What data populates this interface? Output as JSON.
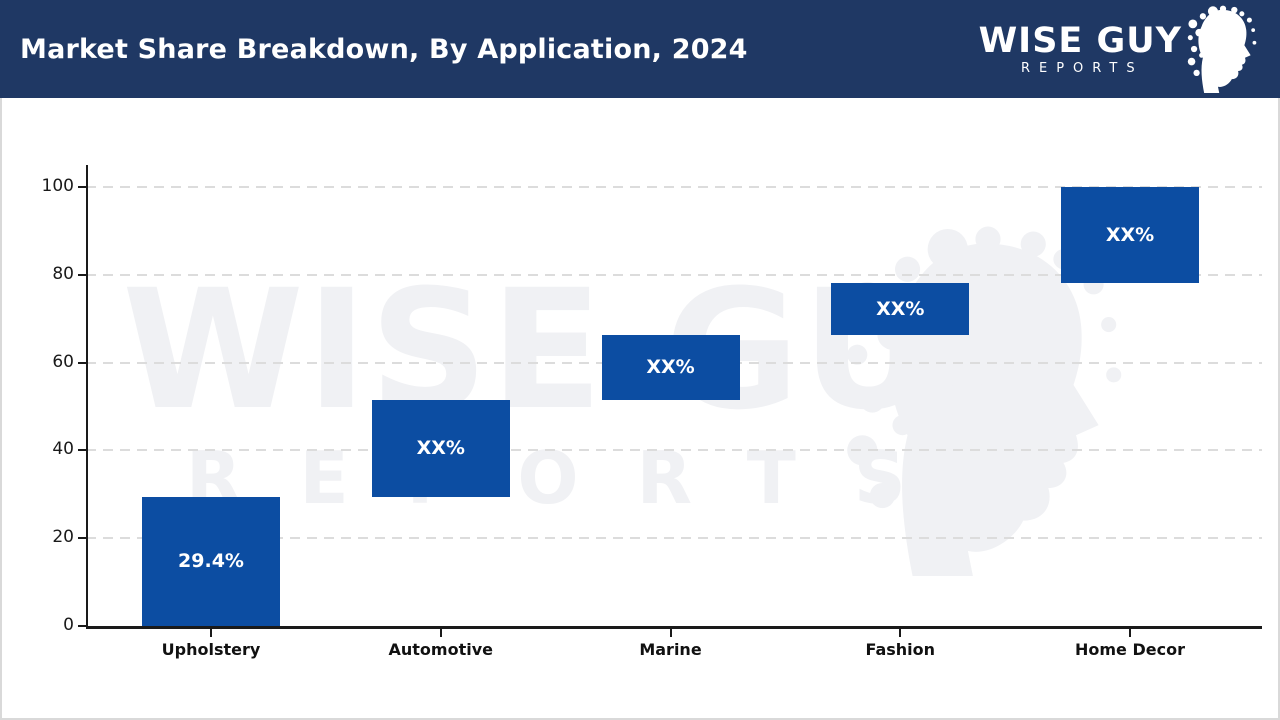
{
  "header": {
    "title": "Market Share Breakdown, By Application, 2024",
    "logo": {
      "line1": "WISE GUY",
      "line2": "REPORTS"
    }
  },
  "watermark": {
    "line1": "WISE GUY",
    "line2": "REPORTS"
  },
  "icons": {
    "logo_mark": "head-profile-dots-icon"
  },
  "colors": {
    "header_bg": "#1f3864",
    "title_text": "#ffffff",
    "bar": "#0c4da2",
    "bar_label": "#ffffff",
    "grid": "#dcdcdc",
    "axis": "#1a1a1a",
    "watermark": "#f0f1f4"
  },
  "chart_data": {
    "type": "bar",
    "subtype": "floating-segment-breakdown",
    "title": "Market Share Breakdown, By Application, 2024",
    "categories": [
      "Upholstery",
      "Automotive",
      "Marine",
      "Fashion",
      "Home Decor"
    ],
    "segments": [
      {
        "category": "Upholstery",
        "start": 0,
        "end": 29.4,
        "label": "29.4%"
      },
      {
        "category": "Automotive",
        "start": 29.4,
        "end": 51.5,
        "label": "XX%"
      },
      {
        "category": "Marine",
        "start": 51.5,
        "end": 66.3,
        "label": "XX%"
      },
      {
        "category": "Fashion",
        "start": 66.3,
        "end": 78.1,
        "label": "XX%"
      },
      {
        "category": "Home Decor",
        "start": 78.1,
        "end": 100,
        "label": "XX%"
      }
    ],
    "xlabel": "",
    "ylabel": "",
    "ylim": [
      0,
      100
    ],
    "yticks": [
      0,
      20,
      40,
      60,
      80,
      100
    ],
    "grid": "horizontal-dashed",
    "legend": "none",
    "bar_color": "#0c4da2",
    "label_color": "#ffffff"
  }
}
